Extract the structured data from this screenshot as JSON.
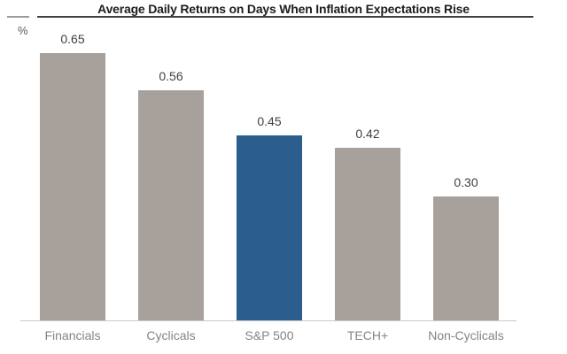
{
  "chart_data": {
    "type": "bar",
    "title": "Average Daily Returns on Days When Inflation Expectations Rise",
    "categories": [
      "Financials",
      "Cyclicals",
      "S&P 500",
      "TECH+",
      "Non-Cyclicals"
    ],
    "values": [
      0.65,
      0.56,
      0.45,
      0.42,
      0.3
    ],
    "value_labels": [
      "0.65",
      "0.56",
      "0.45",
      "0.42",
      "0.30"
    ],
    "xlabel": "",
    "ylabel": "%",
    "ylim": [
      0,
      0.7
    ],
    "grid": false,
    "legend": "none",
    "highlight_index": 2,
    "colors": {
      "bar_default": "#A8A19B",
      "bar_highlight": "#2B5E8C",
      "title_text": "#1E1E1E",
      "title_underline": "#3F3F3F",
      "value_label": "#414042",
      "axis_label": "#828486",
      "baseline": "#CBCBCB"
    }
  }
}
